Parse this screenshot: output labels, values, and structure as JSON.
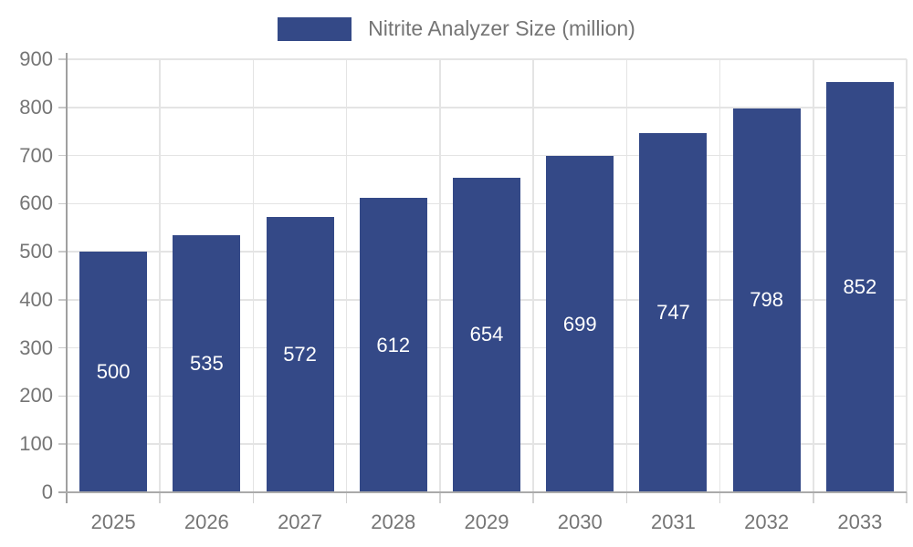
{
  "page": {
    "background_color": "#ffffff"
  },
  "legend": {
    "label": "Nitrite Analyzer Size (million)",
    "swatch_color": "#344987",
    "position": "top-center"
  },
  "chart_data": {
    "type": "bar",
    "title": "Nitrite Analyzer Size (million)",
    "categories": [
      "2025",
      "2026",
      "2027",
      "2028",
      "2029",
      "2030",
      "2031",
      "2032",
      "2033"
    ],
    "values": [
      500,
      535,
      572,
      612,
      654,
      699,
      747,
      798,
      852
    ],
    "xlabel": "",
    "ylabel": "",
    "ylim": [
      0,
      900
    ],
    "yticks": [
      0,
      100,
      200,
      300,
      400,
      500,
      600,
      700,
      800,
      900
    ],
    "grid": true,
    "legend_position": "top",
    "bar_color": "#344987",
    "value_label_color": "#ffffff",
    "axis_text_color": "#757575",
    "gridline_color": "#e4e4e4",
    "axis_line_color": "#aaaaaa"
  }
}
